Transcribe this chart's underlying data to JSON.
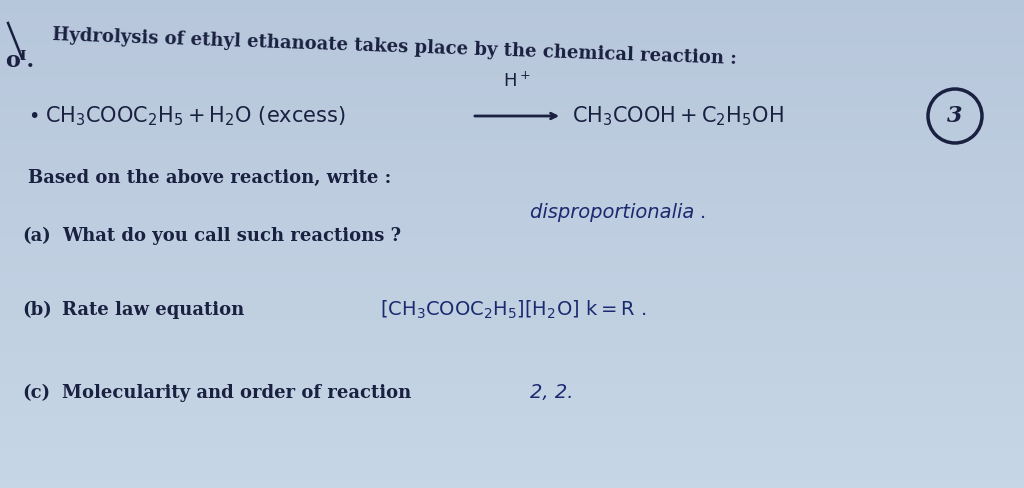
{
  "background_color": "#b8c8d8",
  "bg_gradient_top": "#a8bdd0",
  "bg_gradient_bottom": "#c5d3e0",
  "title_line": "Hydrolysis of ethyl ethanoate takes place by the chemical reaction :",
  "question_num": "oⁱ.",
  "reaction_lhs": "$\\mathregular{CH_3COOC_2H_5 + H_2O\\ (excess)}$",
  "reaction_lhs_plain": "CH₃COOC₂H₅ + H₂O (excess)",
  "reaction_catalyst": "$\\mathregular{H^+}$",
  "reaction_rhs": "$\\mathregular{CH_3COOH + C_2H_5OH}$",
  "reaction_rhs_plain": "CH₃COOH + C₂H₅OH",
  "reaction_mark": "3",
  "based_line": "Based on the above reaction, write :",
  "part_a_label": "(a)",
  "part_a_text": "What do you call such reactions ?",
  "part_a_answer": "disproportionalia .",
  "part_b_label": "(b)",
  "part_b_text": "Rate law equation",
  "part_b_answer": "[CH₃COOC₂H₅][H₂O] k = R .",
  "part_c_label": "(c)",
  "part_c_text": "Molecularity and order of reaction",
  "part_c_answer": "2, 2.",
  "text_color": "#1a2040",
  "handwritten_color": "#1a2a70",
  "font_size_title": 13,
  "font_size_reaction": 15,
  "font_size_main": 13,
  "font_size_hand": 13
}
